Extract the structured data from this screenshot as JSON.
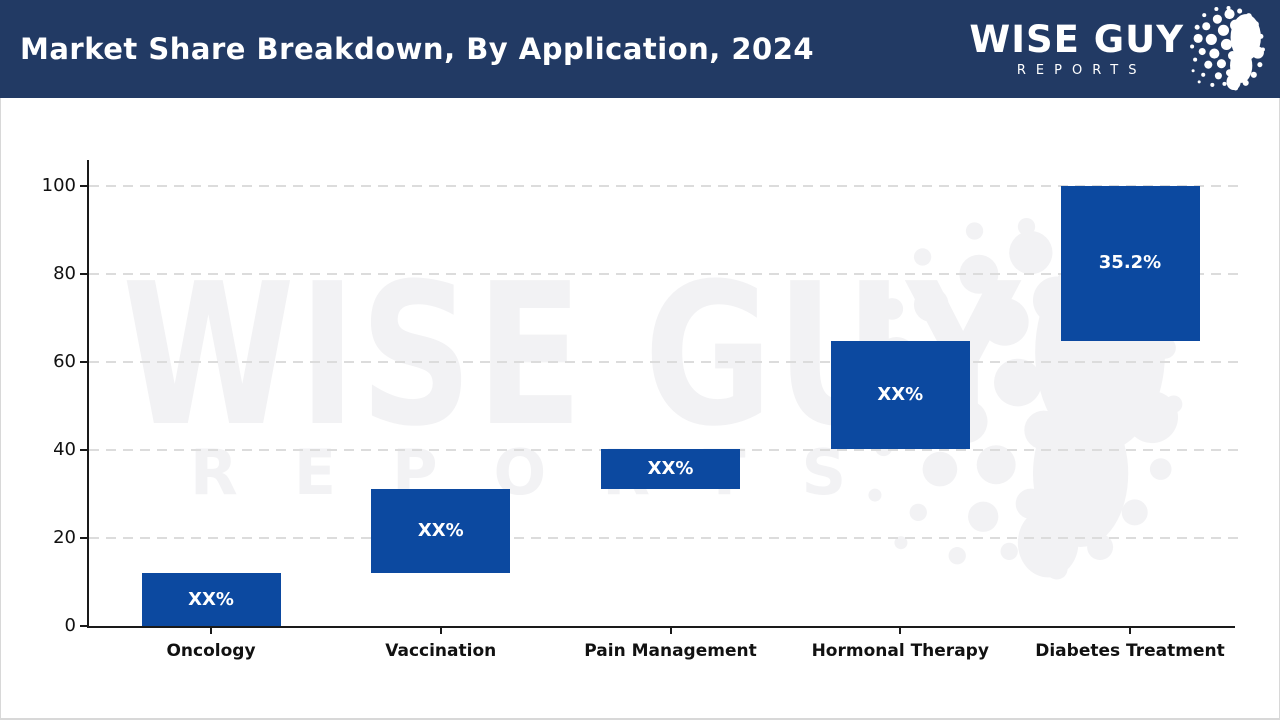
{
  "header": {
    "title": "Market Share Breakdown, By Application, 2024",
    "logo": {
      "line1": "WISE GUY",
      "line2": "REPORTS"
    }
  },
  "watermark": {
    "line1": "WISE GUY",
    "line2": "REPORTS"
  },
  "colors": {
    "header_bg": "#223A64",
    "bar": "#0C49A0",
    "bar_label_text": "#FFFFFF",
    "axis": "#1A1A1A",
    "gridline": "#DCDCDC",
    "watermark": "#F2F2F4"
  },
  "chart_data": {
    "type": "bar",
    "subtype": "floating-waterfall",
    "title": "Market Share Breakdown, By Application, 2024",
    "categories": [
      "Oncology",
      "Vaccination",
      "Pain Management",
      "Hormonal Therapy",
      "Diabetes Treatment"
    ],
    "segments": [
      {
        "category": "Oncology",
        "start": 0,
        "end": 12,
        "value": 12,
        "label": "XX%"
      },
      {
        "category": "Vaccination",
        "start": 12,
        "end": 31.2,
        "value": 19.2,
        "label": "XX%"
      },
      {
        "category": "Pain Management",
        "start": 31.2,
        "end": 40.3,
        "value": 9.1,
        "label": "XX%"
      },
      {
        "category": "Hormonal Therapy",
        "start": 40.3,
        "end": 64.8,
        "value": 24.5,
        "label": "XX%"
      },
      {
        "category": "Diabetes Treatment",
        "start": 64.8,
        "end": 100,
        "value": 35.2,
        "label": "35.2%"
      }
    ],
    "xlabel": "",
    "ylabel": "",
    "ylim": [
      0,
      100
    ],
    "yticks": [
      0,
      20,
      40,
      60,
      80,
      100
    ],
    "grid": "horizontal-dashed",
    "legend": "none"
  }
}
